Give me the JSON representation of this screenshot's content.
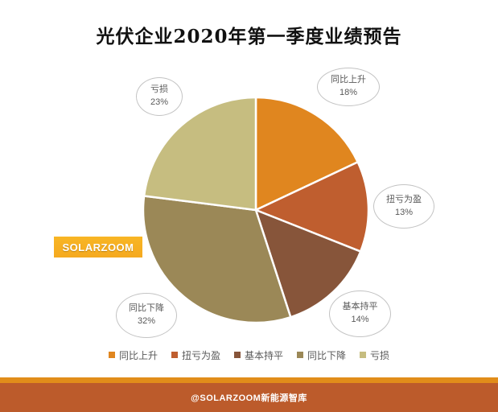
{
  "title": "光伏企业2020年第一季度业绩预告",
  "watermark": {
    "banner_label": "SOLARZOOM",
    "banner_color": "#F5A91F"
  },
  "footer": {
    "credit": "@SOLARZOOM新能源智库",
    "stripe_color": "#E18D1A",
    "bar_color": "#BC5B2B"
  },
  "chart_data": {
    "type": "pie",
    "title": "光伏企业2020年第一季度业绩预告",
    "start_angle_deg": 0,
    "direction": "clockwise",
    "total": 100,
    "segments": [
      {
        "label": "同比上升",
        "value": 18,
        "percent_label": "18%",
        "color": "#E0861F"
      },
      {
        "label": "扭亏为盈",
        "value": 13,
        "percent_label": "13%",
        "color": "#BF5E2F"
      },
      {
        "label": "基本持平",
        "value": 14,
        "percent_label": "14%",
        "color": "#87553A"
      },
      {
        "label": "同比下降",
        "value": 32,
        "percent_label": "32%",
        "color": "#9B8857"
      },
      {
        "label": "亏损",
        "value": 23,
        "percent_label": "23%",
        "color": "#C6BD80"
      }
    ],
    "legend": [
      "同比上升",
      "扭亏为盈",
      "基本持平",
      "同比下降",
      "亏损"
    ],
    "legend_position": "bottom",
    "callout_style": "oval-white-gray-border"
  }
}
